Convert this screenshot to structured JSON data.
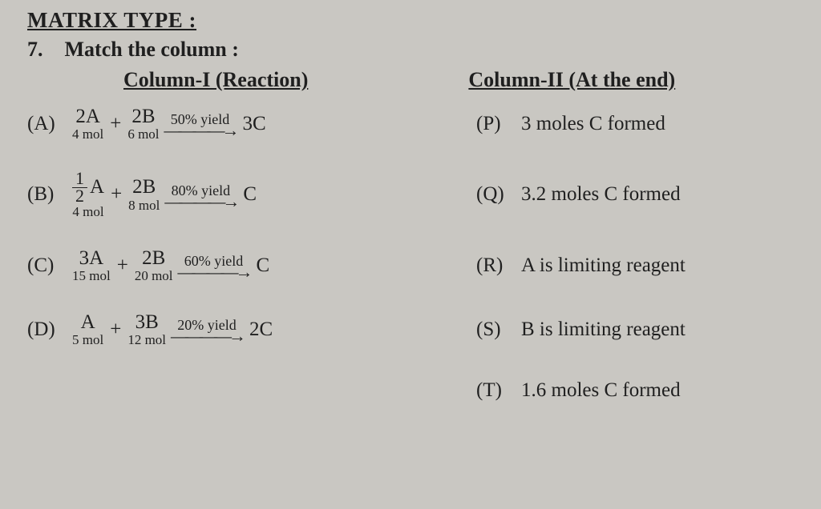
{
  "background_color": "#c9c7c2",
  "text_color": "#1f1f1f",
  "heading": "MATRIX TYPE :",
  "question_number": "7.",
  "question_text": "Match the column :",
  "column1_header": "Column-I (Reaction)",
  "column2_header": "Column-II (At the end)",
  "rows": [
    {
      "left_label": "(A)",
      "r1_top": "2A",
      "r1_bottom": "4 mol",
      "r2_top": "2B",
      "r2_bottom": "6 mol",
      "arrow_label": "50% yield",
      "product": "3C",
      "right_label": "(P)",
      "right_text": "3 moles C formed",
      "use_fraction": false
    },
    {
      "left_label": "(B)",
      "frac_num": "1",
      "frac_den": "2",
      "frac_sym": "A",
      "r1_bottom": "4 mol",
      "r2_top": "2B",
      "r2_bottom": "8 mol",
      "arrow_label": "80% yield",
      "product": "C",
      "right_label": "(Q)",
      "right_text": "3.2 moles C formed",
      "use_fraction": true
    },
    {
      "left_label": "(C)",
      "r1_top": "3A",
      "r1_bottom": "15 mol",
      "r2_top": "2B",
      "r2_bottom": "20 mol",
      "arrow_label": "60% yield",
      "product": "C",
      "right_label": "(R)",
      "right_text": "A is limiting reagent",
      "use_fraction": false
    },
    {
      "left_label": "(D)",
      "r1_top": "A",
      "r1_bottom": "5 mol",
      "r2_top": "3B",
      "r2_bottom": "12 mol",
      "arrow_label": "20% yield",
      "product": "2C",
      "right_label": "(S)",
      "right_text": "B is limiting reagent",
      "use_fraction": false
    }
  ],
  "extra": {
    "label": "(T)",
    "text": "1.6 moles C formed"
  },
  "arrow_glyph": "————→",
  "plus": "+"
}
